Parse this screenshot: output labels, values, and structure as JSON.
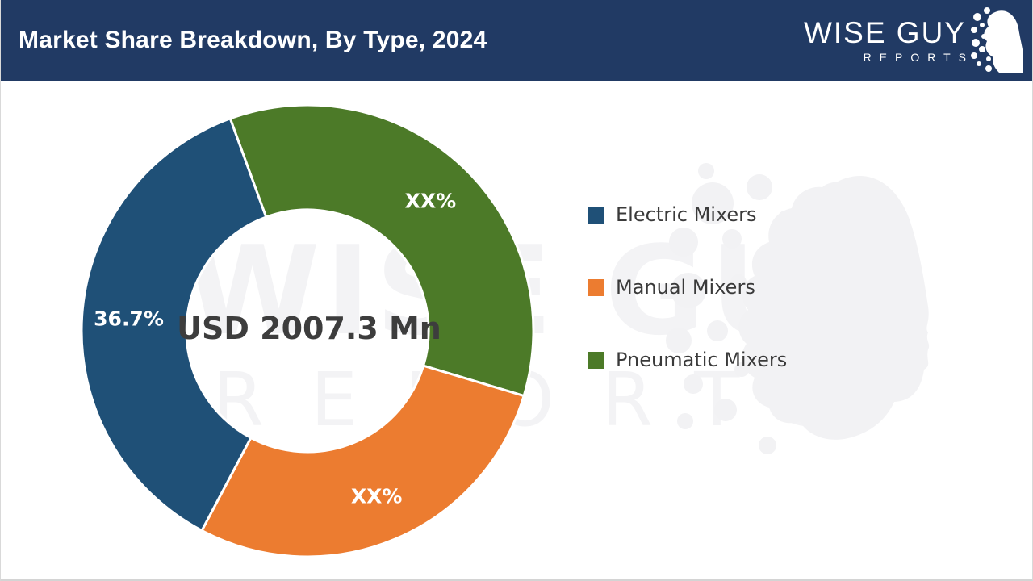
{
  "header": {
    "title": "Market Share Breakdown, By Type, 2024",
    "logo": {
      "line1": "WISE GUY",
      "line2": "REPORTS"
    }
  },
  "watermark": {
    "line1": "WISE GUY",
    "line2": "REPORTS"
  },
  "chart_data": {
    "type": "pie",
    "donut": true,
    "title": "Market Share Breakdown, By Type, 2024",
    "center_label": "USD 2007.3 Mn",
    "legend_position": "right",
    "rotation_compass_deg": -20,
    "segments": [
      {
        "label": "Electric Mixers",
        "display_value": "36.7%",
        "percent": 36.7,
        "color": "#1F5077"
      },
      {
        "label": "Manual Mixers",
        "display_value": "XX%",
        "percent": 28.1,
        "color": "#EC7C30"
      },
      {
        "label": "Pneumatic Mixers",
        "display_value": "XX%",
        "percent": 35.2,
        "color": "#4C7A28"
      }
    ],
    "header_color": "#213A64"
  }
}
